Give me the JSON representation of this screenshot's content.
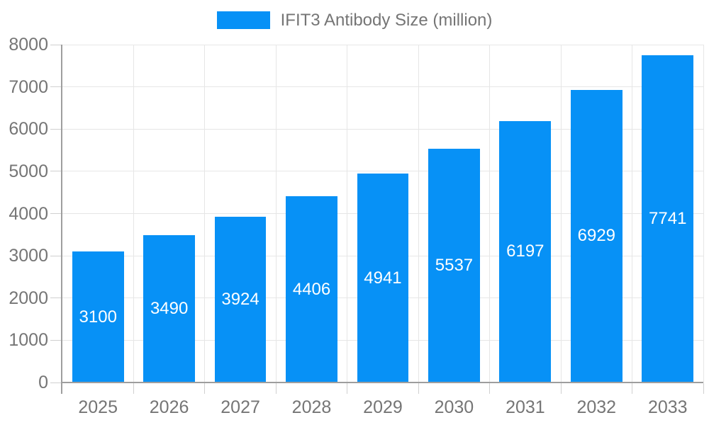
{
  "colors": {
    "bar_fill": "#0791f6",
    "bar_label_text": "#ffffff",
    "axis_line": "#9e9e9e",
    "grid_line": "#e6e6e6",
    "tick_line": "#d0d0d0",
    "axis_text": "#757575",
    "background": "#ffffff"
  },
  "chart_data": {
    "type": "bar",
    "title": "IFIT3 Antibody Size (million)",
    "series_name": "IFIT3 Antibody Size (million)",
    "categories": [
      "2025",
      "2026",
      "2027",
      "2028",
      "2029",
      "2030",
      "2031",
      "2032",
      "2033"
    ],
    "values": [
      3100,
      3490,
      3924,
      4406,
      4941,
      5537,
      6197,
      6929,
      7741
    ],
    "xlabel": "",
    "ylabel": "",
    "ylim": [
      0,
      8000
    ],
    "ytick_step": 1000,
    "ytick_labels": [
      "0",
      "1000",
      "2000",
      "3000",
      "4000",
      "5000",
      "6000",
      "7000",
      "8000"
    ],
    "grid": "on",
    "legend_position": "top",
    "value_label_position": "inside-center"
  }
}
